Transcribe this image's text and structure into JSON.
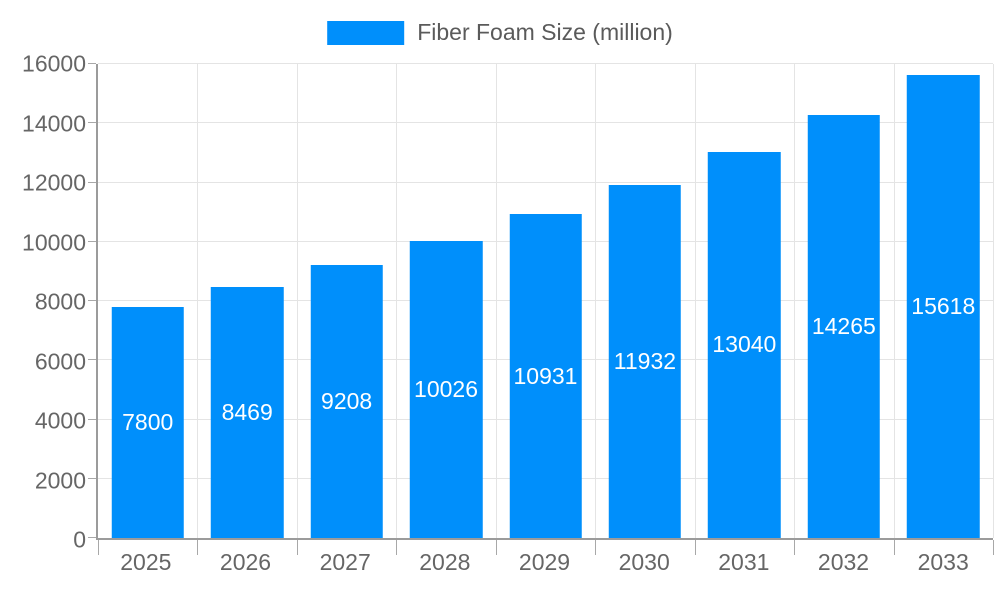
{
  "chart_data": {
    "type": "bar",
    "title": "Fiber Foam Size (million)",
    "categories": [
      "2025",
      "2026",
      "2027",
      "2028",
      "2029",
      "2030",
      "2031",
      "2032",
      "2033"
    ],
    "series": [
      {
        "name": "Fiber Foam Size (million)",
        "values": [
          7800,
          8469,
          9208,
          10026,
          10931,
          11932,
          13040,
          14265,
          15618
        ]
      }
    ],
    "data_labels": [
      "7800",
      "8469",
      "9208",
      "10026",
      "10931",
      "11932",
      "13040",
      "14265",
      "15618"
    ],
    "xlabel": "",
    "ylabel": "",
    "ylim": [
      0,
      16000
    ],
    "yticks": [
      0,
      2000,
      4000,
      6000,
      8000,
      10000,
      12000,
      14000,
      16000
    ],
    "grid": true,
    "legend_position": "top",
    "colors": {
      "bar": "#008FFB",
      "value_label": "#ffffff",
      "axis_text": "#666666",
      "legend_text": "#5a5a5a",
      "grid": "#e4e4e4",
      "axis_line": "#9b9b9b",
      "tick": "#a8a8a8"
    }
  }
}
